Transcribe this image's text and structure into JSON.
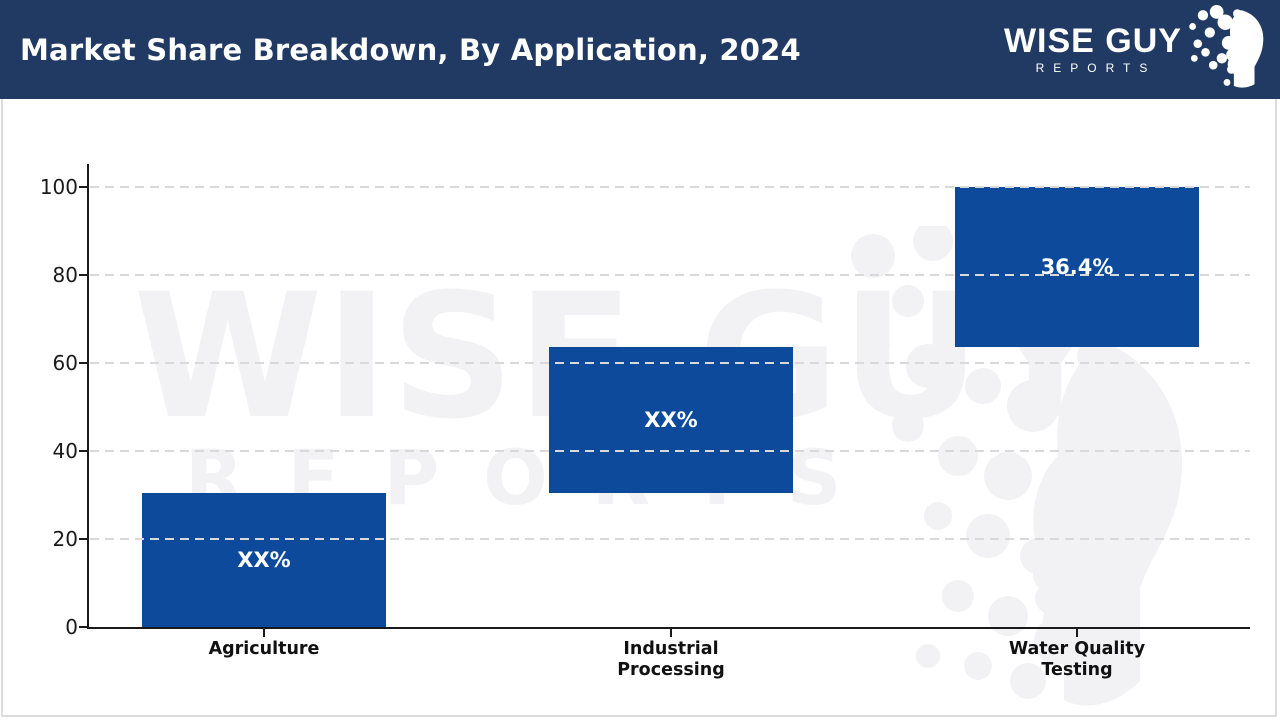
{
  "header": {
    "title": "Market Share Breakdown, By Application, 2024",
    "background_color": "#213a63",
    "logo": {
      "wordmark": "WISE GUY",
      "subtext": "REPORTS"
    }
  },
  "watermark": {
    "line1": "WISE GUY",
    "line2": "REPORTS"
  },
  "chart_data": {
    "type": "bar",
    "subtype": "waterfall",
    "title": "Market Share Breakdown, By Application, 2024",
    "categories": [
      {
        "label": "Agriculture",
        "lines": [
          "Agriculture"
        ]
      },
      {
        "label": "Industrial Processing",
        "lines": [
          "Industrial",
          "Processing"
        ]
      },
      {
        "label": "Water Quality Testing",
        "lines": [
          "Water Quality",
          "Testing"
        ]
      }
    ],
    "segments": [
      {
        "category": "Agriculture",
        "start": 0,
        "end": 30.4,
        "bar_label": "XX%"
      },
      {
        "category": "Industrial Processing",
        "start": 30.4,
        "end": 63.6,
        "bar_label": "XX%"
      },
      {
        "category": "Water Quality Testing",
        "start": 63.6,
        "end": 100,
        "bar_label": "36.4%"
      }
    ],
    "yticks": [
      0,
      20,
      40,
      60,
      80,
      100
    ],
    "ylim": [
      0,
      100
    ],
    "xlabel": "",
    "ylabel": "",
    "grid": "horizontal-dashed-drawn-over-bars",
    "legend": "none",
    "bar_color": "#0d4a9c",
    "bar_label_color": "#ffffff",
    "gridline_color": "#d9d9d9",
    "axis_color": "#1a1a1a"
  }
}
